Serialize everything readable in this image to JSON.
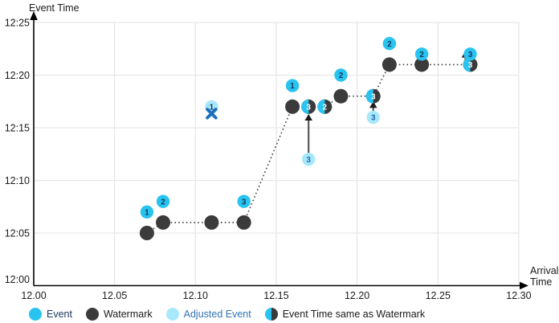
{
  "x_axis_title": {
    "line1": "Arrival",
    "line2": "Time"
  },
  "colors": {
    "event": "#29C3F0",
    "watermark": "#3B3B3B",
    "adjusted": "#A8E8FB",
    "number_on_event": "#17375E",
    "number_on_adjusted": "#2666B0",
    "number_on_dark": "#FFFFFF",
    "drop_x": "#1B6FC0",
    "grid": "#E7E7E7",
    "axis": "#000000",
    "dotted_line": "#404040",
    "arrow_line": "#575757",
    "arrow_head": "#1A1A1A",
    "legend_event_text": "#17375E",
    "legend_watermark_text": "#1A1A1A",
    "legend_adjusted_text": "#2E74B5",
    "legend_half_text": "#1A1A1A"
  },
  "chart_data": {
    "type": "scatter",
    "xlabel": "Arrival Time",
    "ylabel": "Event Time",
    "x_ticks": [
      {
        "label": "12.00",
        "value": 12.0
      },
      {
        "label": "12.05",
        "value": 12.05
      },
      {
        "label": "12.10",
        "value": 12.1
      },
      {
        "label": "12.15",
        "value": 12.15
      },
      {
        "label": "12.20",
        "value": 12.2
      },
      {
        "label": "12.25",
        "value": 12.25
      },
      {
        "label": "12.30",
        "value": 12.3
      }
    ],
    "y_ticks": [
      {
        "label": "12:00",
        "minutes": 0
      },
      {
        "label": "12:05",
        "minutes": 5
      },
      {
        "label": "12:10",
        "minutes": 10
      },
      {
        "label": "12:15",
        "minutes": 15
      },
      {
        "label": "12:20",
        "minutes": 20
      },
      {
        "label": "12:25",
        "minutes": 25
      }
    ],
    "xlim": [
      12.0,
      12.3
    ],
    "ylim_minutes": [
      0,
      25
    ],
    "grid": true,
    "events": [
      {
        "label": "1",
        "arrival": 12.07,
        "event_time": "12:07",
        "minutes": 7
      },
      {
        "label": "2",
        "arrival": 12.08,
        "event_time": "12:08",
        "minutes": 8
      },
      {
        "label": "3",
        "arrival": 12.13,
        "event_time": "12:08",
        "minutes": 8
      },
      {
        "label": "1",
        "arrival": 12.16,
        "event_time": "12:19",
        "minutes": 19
      },
      {
        "label": "2",
        "arrival": 12.19,
        "event_time": "12:20",
        "minutes": 20
      },
      {
        "label": "2",
        "arrival": 12.22,
        "event_time": "12:23",
        "minutes": 23
      },
      {
        "label": "2",
        "arrival": 12.24,
        "event_time": "12:22",
        "minutes": 22
      },
      {
        "label": "3",
        "arrival": 12.27,
        "event_time": "12:22",
        "minutes": 22
      }
    ],
    "watermarks": [
      {
        "arrival": 12.07,
        "event_time": "12:05",
        "minutes": 5
      },
      {
        "arrival": 12.08,
        "event_time": "12:06",
        "minutes": 6
      },
      {
        "arrival": 12.11,
        "event_time": "12:06",
        "minutes": 6
      },
      {
        "arrival": 12.13,
        "event_time": "12:06",
        "minutes": 6
      },
      {
        "arrival": 12.16,
        "event_time": "12:17",
        "minutes": 17
      },
      {
        "arrival": 12.19,
        "event_time": "12:18",
        "minutes": 18
      },
      {
        "arrival": 12.22,
        "event_time": "12:21",
        "minutes": 21
      },
      {
        "arrival": 12.24,
        "event_time": "12:21",
        "minutes": 21
      }
    ],
    "same_as_watermark": [
      {
        "label": "3",
        "arrival": 12.17,
        "event_time": "12:17",
        "minutes": 17
      },
      {
        "label": "2",
        "arrival": 12.18,
        "event_time": "12:17",
        "minutes": 17
      },
      {
        "label": "3",
        "arrival": 12.21,
        "event_time": "12:18",
        "minutes": 18
      },
      {
        "label": "3",
        "arrival": 12.27,
        "event_time": "12:21",
        "minutes": 21
      }
    ],
    "adjusted_events": [
      {
        "label": "3",
        "arrival": 12.17,
        "event_time": "12:12",
        "minutes": 12
      },
      {
        "label": "3",
        "arrival": 12.21,
        "event_time": "12:16",
        "minutes": 16
      }
    ],
    "dropped_event": {
      "label": "1",
      "arrival": 12.11,
      "event_time": "12:17",
      "minutes": 17
    },
    "watermark_path": [
      [
        12.07,
        5
      ],
      [
        12.08,
        6
      ],
      [
        12.13,
        6
      ],
      [
        12.16,
        17
      ],
      [
        12.18,
        17
      ],
      [
        12.19,
        18
      ],
      [
        12.21,
        18
      ],
      [
        12.22,
        21
      ],
      [
        12.27,
        21
      ]
    ],
    "arrows": [
      {
        "at_arrival": 12.17,
        "from_event_time": "12:12",
        "to_event_time": "12:17",
        "from_min": 12.6,
        "to_min": 16.3
      },
      {
        "at_arrival": 12.21,
        "from_event_time": "12:16",
        "to_event_time": "12:18",
        "from_min": 16.55,
        "to_min": 17.5
      },
      {
        "at_arrival": 12.267,
        "from_event_time": "12:21",
        "to_event_time": "12:22",
        "from_min": 21.05,
        "to_min": 22.28
      }
    ]
  },
  "legend": [
    {
      "label": "Event",
      "type": "event"
    },
    {
      "label": "Watermark",
      "type": "watermark"
    },
    {
      "label": "Adjusted Event",
      "type": "adjusted"
    },
    {
      "label": "Event Time same as Watermark",
      "type": "half"
    }
  ]
}
